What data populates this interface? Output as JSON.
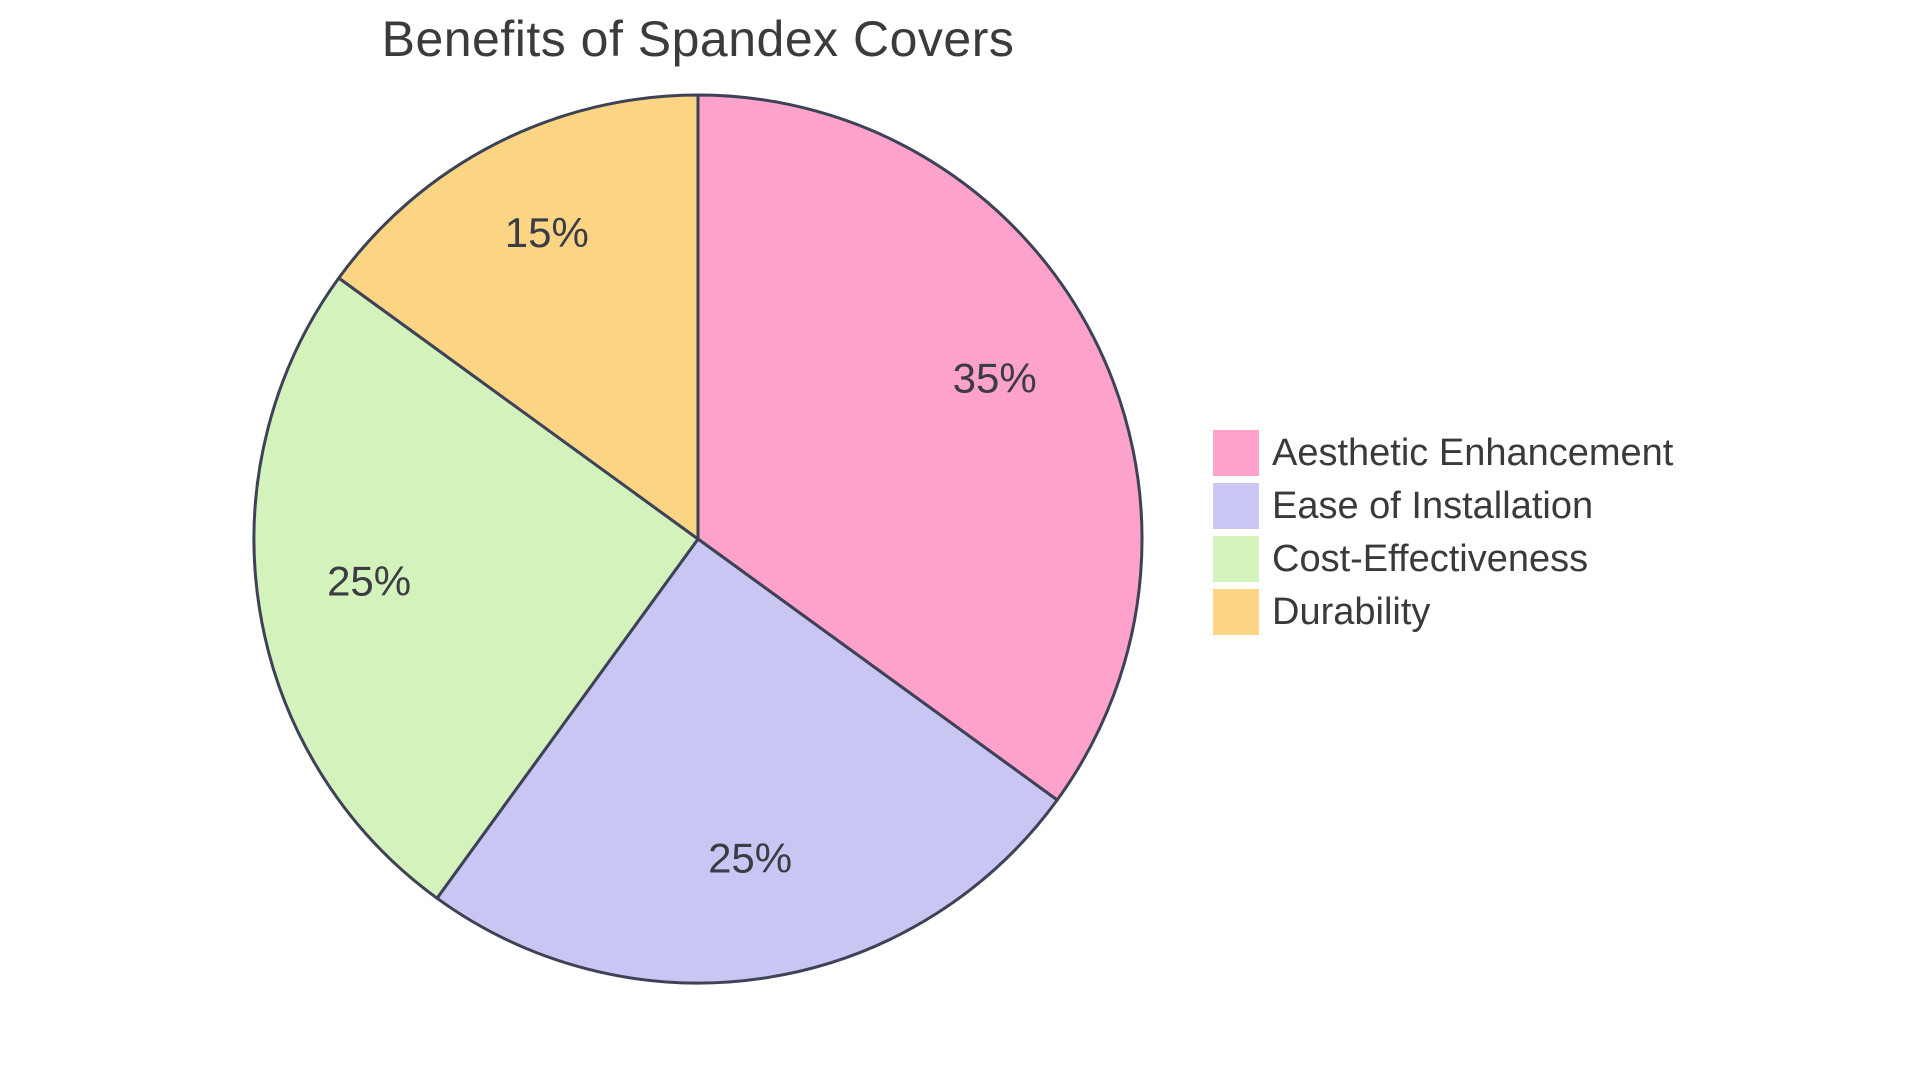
{
  "title": "Benefits of Spandex Covers",
  "chart_data": {
    "type": "pie",
    "title": "Benefits of Spandex Covers",
    "categories": [
      "Aesthetic Enhancement",
      "Ease of Installation",
      "Cost-Effectiveness",
      "Durability"
    ],
    "values": [
      35,
      25,
      25,
      15
    ],
    "slice_labels": [
      "35%",
      "25%",
      "25%",
      "15%"
    ],
    "colors": [
      "#FCA2CB",
      "#C9C6F3",
      "#D4F2BB",
      "#FBD584"
    ],
    "edge_color": "#3E4257",
    "label_color": "#3C3C44",
    "title_color": "#3B3B3B",
    "background": "#FFFFFF",
    "start_angle": "top",
    "direction": "clockwise",
    "legend_position": "center-right",
    "pct_label_distance": 0.75
  },
  "legend": {
    "items": [
      {
        "label": "Aesthetic Enhancement",
        "color": "#FCA2CB"
      },
      {
        "label": "Ease of Installation",
        "color": "#C9C6F3"
      },
      {
        "label": "Cost-Effectiveness",
        "color": "#D4F2BB"
      },
      {
        "label": "Durability",
        "color": "#FBD584"
      }
    ]
  }
}
